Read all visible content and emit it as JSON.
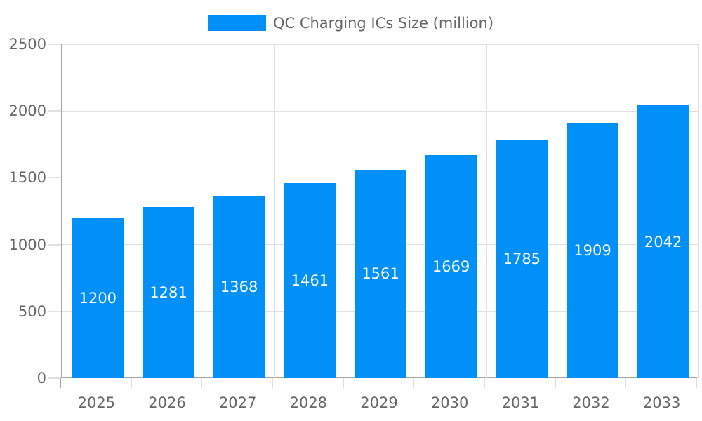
{
  "chart_data": {
    "type": "bar",
    "title": "QC Charging ICs Size (million)",
    "legend_position": "top",
    "categories": [
      "2025",
      "2026",
      "2027",
      "2028",
      "2029",
      "2030",
      "2031",
      "2032",
      "2033"
    ],
    "series": [
      {
        "name": "QC Charging ICs Size (million)",
        "values": [
          1200,
          1281,
          1368,
          1461,
          1561,
          1669,
          1785,
          1909,
          2042
        ]
      }
    ],
    "xlabel": "",
    "ylabel": "",
    "ylim": [
      0,
      2500
    ],
    "yticks": [
      0,
      500,
      1000,
      1500,
      2000,
      2500
    ],
    "grid": true,
    "value_labels": "inside-center"
  },
  "colors": {
    "bar": "#0190f8",
    "grid": "#e0e0e0",
    "axis": "#a6a6a6",
    "tick_text": "#666666",
    "value_text": "#ffffff",
    "legend_text": "#666666",
    "background": "#ffffff"
  }
}
